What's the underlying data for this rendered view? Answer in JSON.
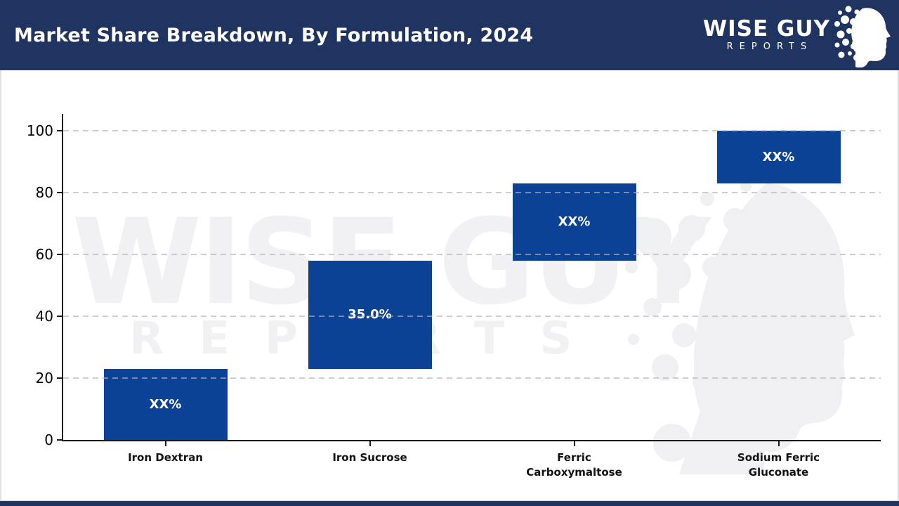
{
  "header": {
    "title": "Market Share Breakdown, By Formulation, 2024",
    "logo": {
      "line1": "WISE GUY",
      "line2": "REPORTS"
    }
  },
  "watermark": {
    "line1": "WISE GUY",
    "line2": "REPORTS"
  },
  "colors": {
    "header_bg": "#1f3460",
    "bar": "#0b4295",
    "bar_label": "#ffffff",
    "grid": "#c4c4c4",
    "axis": "#1a1a1a",
    "watermark": "#f1f1f4"
  },
  "chart_data": {
    "type": "bar",
    "subtype": "floating-waterfall",
    "title": "Market Share Breakdown, By Formulation, 2024",
    "categories": [
      "Iron Dextran",
      "Iron Sucrose",
      "Ferric Carboxymaltose",
      "Sodium Ferric Gluconate"
    ],
    "category_label_lines": [
      [
        "Iron Dextran"
      ],
      [
        "Iron Sucrose"
      ],
      [
        "Ferric",
        "Carboxymaltose"
      ],
      [
        "Sodium Ferric",
        "Gluconate"
      ]
    ],
    "bars": [
      {
        "category": "Iron Dextran",
        "start": 0,
        "end": 23,
        "size": 23,
        "label": "XX%"
      },
      {
        "category": "Iron Sucrose",
        "start": 23,
        "end": 58,
        "size": 35,
        "label": "35.0%"
      },
      {
        "category": "Ferric Carboxymaltose",
        "start": 58,
        "end": 83,
        "size": 25,
        "label": "XX%"
      },
      {
        "category": "Sodium Ferric Gluconate",
        "start": 83,
        "end": 100,
        "size": 17,
        "label": "XX%"
      }
    ],
    "xlabel": "",
    "ylabel": "",
    "ylim": [
      0,
      100
    ],
    "yticks": [
      0,
      20,
      40,
      60,
      80,
      100
    ],
    "grid": "horizontal-dashed",
    "legend": "none"
  }
}
